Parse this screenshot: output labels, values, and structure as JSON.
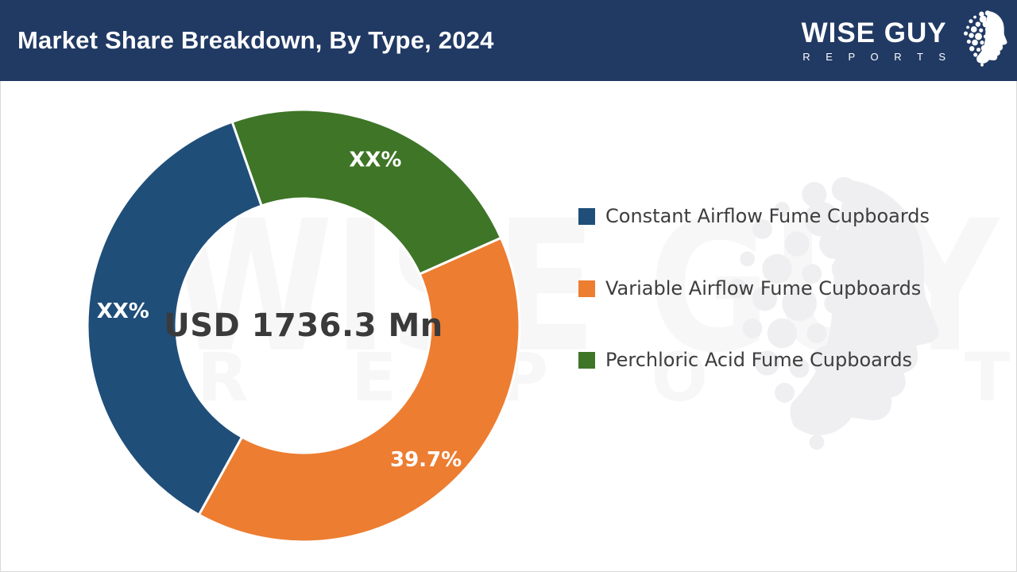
{
  "header": {
    "title": "Market Share Breakdown, By Type, 2024",
    "logo": {
      "line1": "WISE GUY",
      "line2": "R E P O R T S"
    }
  },
  "watermark": {
    "line1": "WISE GUY",
    "line2": "R E P O R T S"
  },
  "chart_data": {
    "type": "pie",
    "subtype": "donut",
    "title": "Market Share Breakdown, By Type, 2024",
    "center_label": "USD 1736.3 Mn",
    "start_angle_deg": -19.3,
    "slice_gap_stroke": "#ffffff",
    "slices": [
      {
        "name": "Perchloric Acid Fume Cupboards",
        "value_pct": 23.7,
        "display_label": "XX%",
        "color": "#3E7527"
      },
      {
        "name": "Variable Airflow Fume Cupboards",
        "value_pct": 39.7,
        "display_label": "39.7%",
        "color": "#ED7D31"
      },
      {
        "name": "Constant Airflow Fume Cupboards",
        "value_pct": 36.6,
        "display_label": "XX%",
        "color": "#1F4E79"
      }
    ]
  },
  "legend": {
    "items": [
      {
        "label": "Constant Airflow Fume Cupboards",
        "color": "#1F4E79"
      },
      {
        "label": "Variable Airflow Fume Cupboards",
        "color": "#ED7D31"
      },
      {
        "label": "Perchloric Acid Fume Cupboards",
        "color": "#3E7527"
      }
    ]
  },
  "colors": {
    "header_bg": "#213A64",
    "center_text": "#3A3A3A",
    "legend_text": "#3D3D3D",
    "frame_border": "#D8D8D8"
  }
}
